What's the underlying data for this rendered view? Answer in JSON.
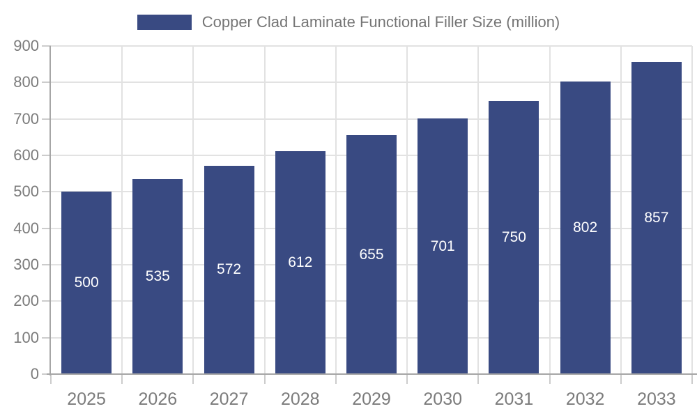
{
  "legend": {
    "label": "Copper Clad Laminate Functional Filler Size (million)"
  },
  "chart_data": {
    "type": "bar",
    "title": "Copper Clad Laminate Functional Filler Size (million)",
    "categories": [
      "2025",
      "2026",
      "2027",
      "2028",
      "2029",
      "2030",
      "2031",
      "2032",
      "2033"
    ],
    "values": [
      500,
      535,
      572,
      612,
      655,
      701,
      750,
      802,
      857
    ],
    "xlabel": "",
    "ylabel": "",
    "ylim": [
      0,
      900
    ],
    "ytick_step": 100,
    "yticks": [
      0,
      100,
      200,
      300,
      400,
      500,
      600,
      700,
      800,
      900
    ],
    "grid": true,
    "legend_position": "top",
    "value_labels": "inside-center",
    "colors": {
      "bar": "#394a82",
      "value_label": "#ffffff",
      "grid": "#e2e2e2",
      "axis": "#a6a6a6",
      "tick_mark": "#cccccc",
      "tick_label": "#7b7b7b",
      "legend_text": "#757575",
      "background": "#ffffff"
    }
  }
}
